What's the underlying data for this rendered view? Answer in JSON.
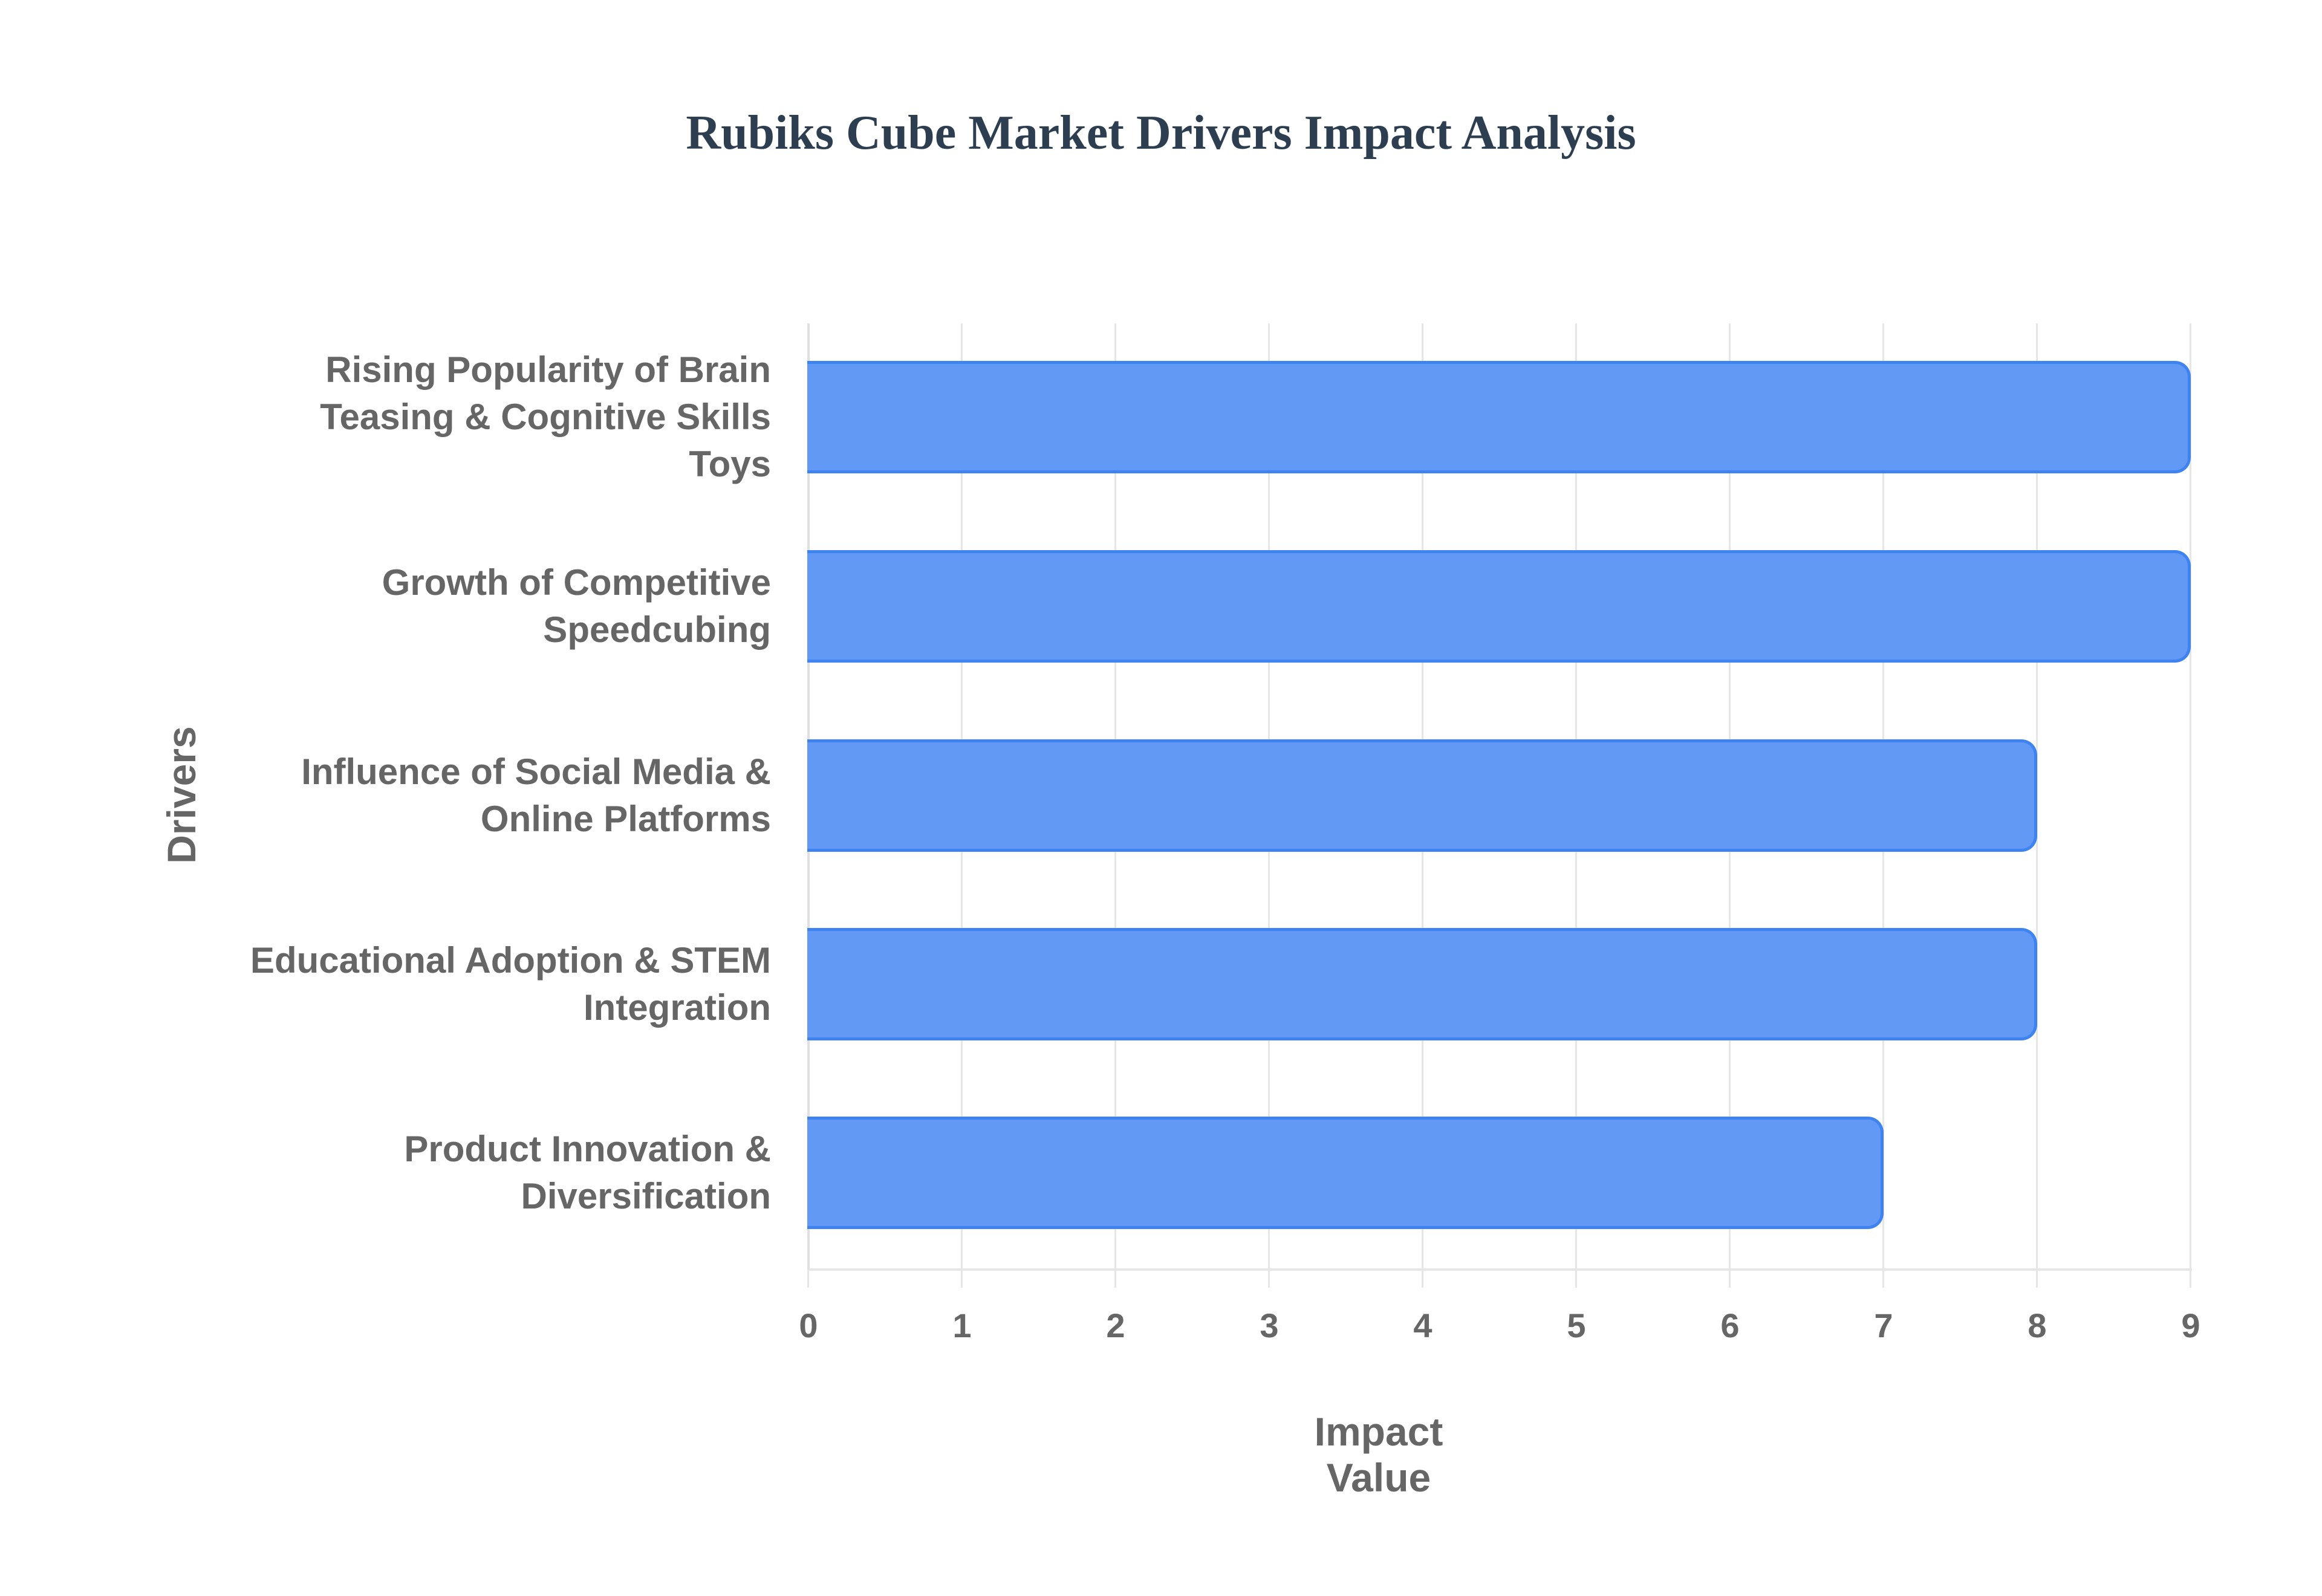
{
  "title": "Rubiks Cube Market Drivers Impact Analysis",
  "x_axis": {
    "title": "Impact Value",
    "ticks": [
      "0",
      "1",
      "2",
      "3",
      "4",
      "5",
      "6",
      "7",
      "8",
      "9"
    ]
  },
  "y_axis": {
    "title": "Drivers"
  },
  "bars": [
    {
      "label_lines": [
        "Rising Popularity of Brain",
        "Teasing & Cognitive Skills",
        "Toys"
      ],
      "value": 9
    },
    {
      "label_lines": [
        "Growth of Competitive",
        "Speedcubing"
      ],
      "value": 9
    },
    {
      "label_lines": [
        "Influence of Social Media &",
        "Online Platforms"
      ],
      "value": 8
    },
    {
      "label_lines": [
        "Educational Adoption & STEM",
        "Integration"
      ],
      "value": 8
    },
    {
      "label_lines": [
        "Product Innovation &",
        "Diversification"
      ],
      "value": 7
    }
  ],
  "colors": {
    "bar_fill": "#6199f5",
    "bar_border": "#3f83f0",
    "title": "#2c3e50",
    "axis_text": "#666666",
    "grid": "#e6e6e6"
  },
  "chart_data": {
    "type": "bar",
    "orientation": "horizontal",
    "title": "Rubiks Cube Market Drivers Impact Analysis",
    "xlabel": "Impact Value",
    "ylabel": "Drivers",
    "categories": [
      "Rising Popularity of Brain Teasing & Cognitive Skills Toys",
      "Growth of Competitive Speedcubing",
      "Influence of Social Media & Online Platforms",
      "Educational Adoption & STEM Integration",
      "Product Innovation & Diversification"
    ],
    "values": [
      9,
      9,
      8,
      8,
      7
    ],
    "xlim": [
      0,
      9
    ],
    "x_ticks": [
      0,
      1,
      2,
      3,
      4,
      5,
      6,
      7,
      8,
      9
    ],
    "grid": true,
    "legend": null
  }
}
